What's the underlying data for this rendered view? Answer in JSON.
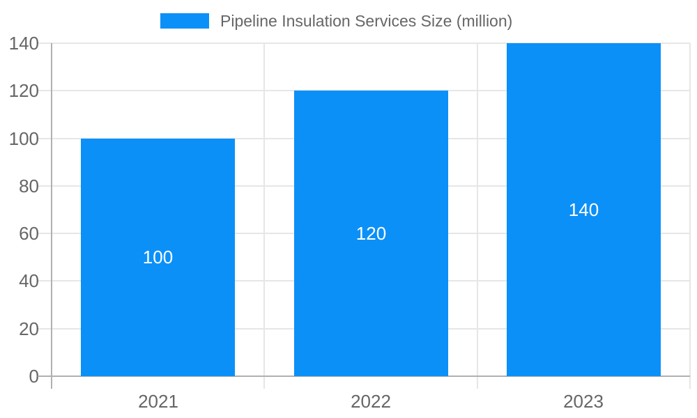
{
  "chart_data": {
    "type": "bar",
    "title": "Pipeline Insulation Services Size (million)",
    "categories": [
      "2021",
      "2022",
      "2023"
    ],
    "series": [
      {
        "name": "Pipeline Insulation Services Size (million)",
        "values": [
          100,
          120,
          140
        ]
      }
    ],
    "bar_value_labels": [
      "100",
      "120",
      "140"
    ],
    "xlabel": "",
    "ylabel": "",
    "ylim": [
      0,
      140
    ],
    "yticks": [
      0,
      20,
      40,
      60,
      80,
      100,
      120,
      140
    ],
    "grid": true,
    "legend_position": "top",
    "colors": {
      "bar": "#0b90f8",
      "grid_line": "#e6e6e6",
      "axis_line": "#b0b0b0",
      "tick_text": "#666666",
      "bar_label_text": "#ffffff",
      "legend_text": "#666666",
      "background": "#ffffff"
    }
  }
}
